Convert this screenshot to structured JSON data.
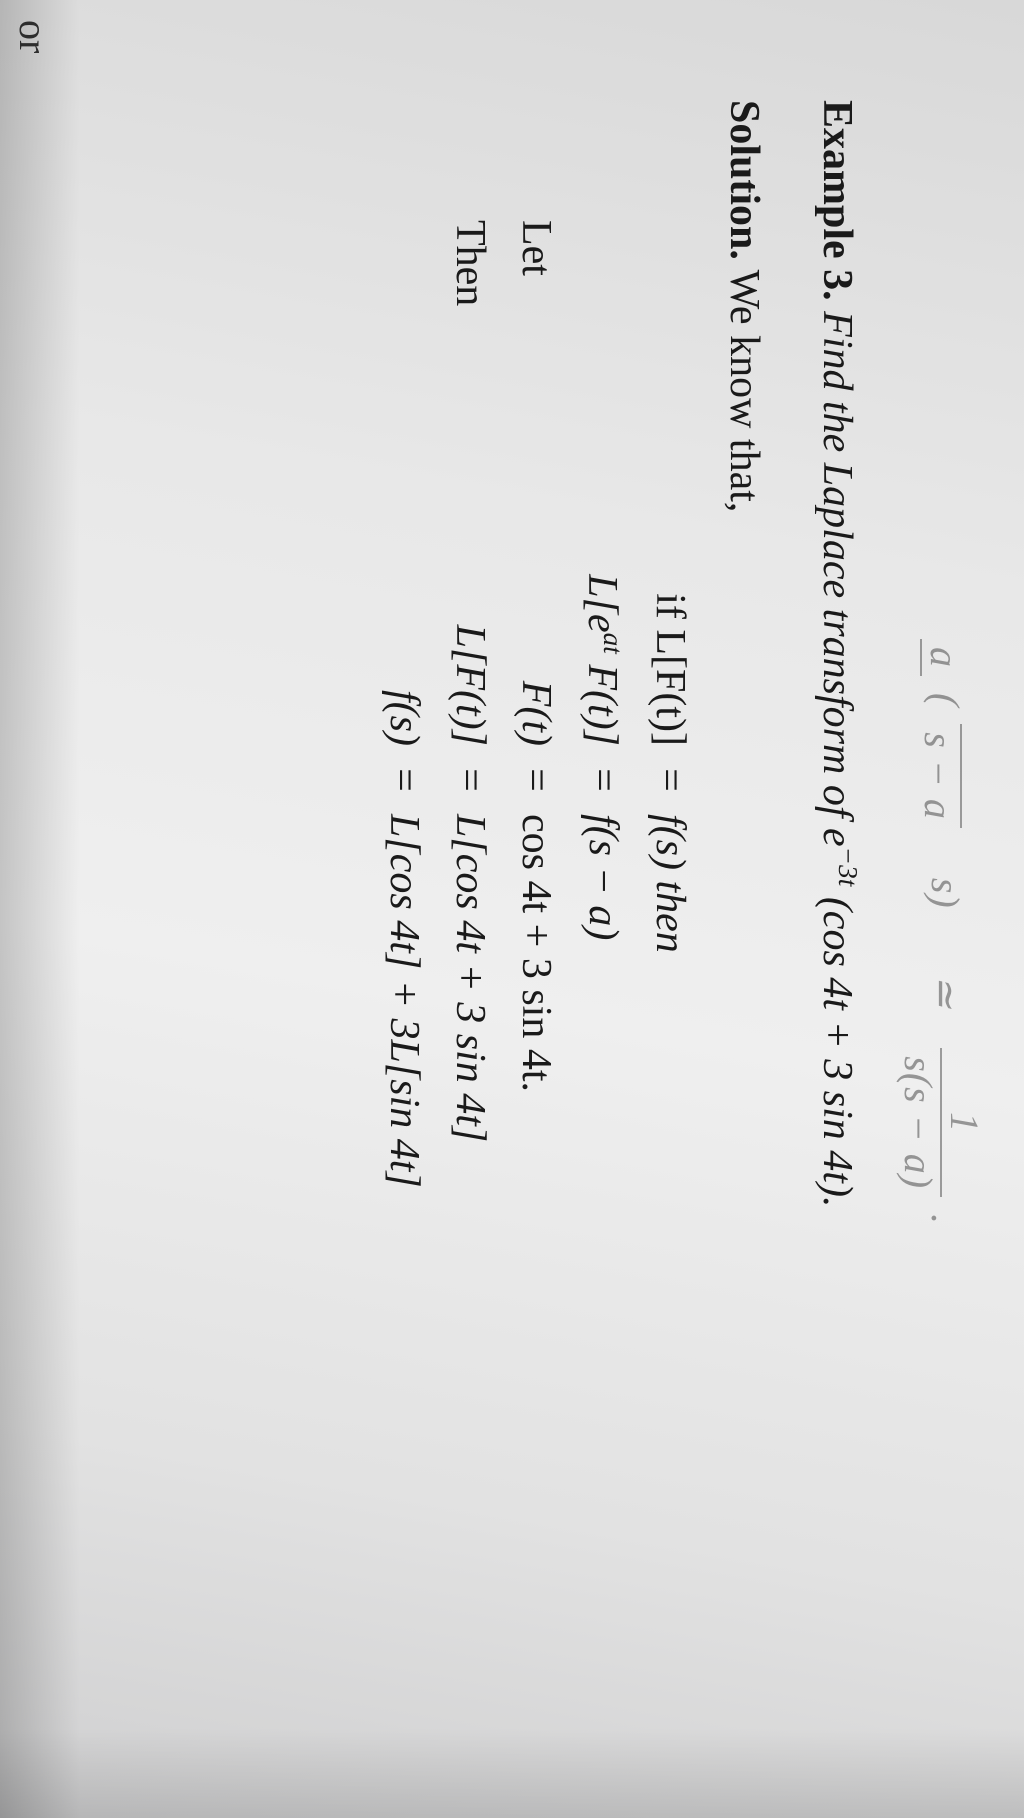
{
  "top_fragment": {
    "left_frac_num": "a",
    "left_frac_den": "",
    "mid_left": "(",
    "mid_frac_num": "",
    "mid_frac_den": "s − a",
    "mid_right": "s)",
    "sim": "≃",
    "frac2_num": "1",
    "frac2_den": "s(s − a)",
    "tail": "."
  },
  "example_label": "Example 3.",
  "example_text_1": " Find the Laplace transform of ",
  "example_expr": "e",
  "example_exp": "−3t",
  "example_text_2": " (cos 4t + 3 sin 4t).",
  "solution_label": "Solution.",
  "solution_text": " We know that,",
  "lines": {
    "l1_left": "if L[F(t)]",
    "l1_right": "f(s) then",
    "l2_left_pre": "L[e",
    "l2_left_sup": "at",
    "l2_left_post": " F(t)]",
    "l2_right": "f(s − a)",
    "let_label": "Let",
    "l3_left": "F(t)",
    "l3_right": "cos 4t + 3 sin 4t.",
    "then_label": "Then",
    "l4_left": "L[F(t)]",
    "l4_right": "L[cos 4t + 3 sin 4t]",
    "l5_left": "f(s)",
    "l5_right": "L[cos 4t] + 3L[sin 4t]"
  },
  "or_label": "or",
  "eq_sign": "="
}
